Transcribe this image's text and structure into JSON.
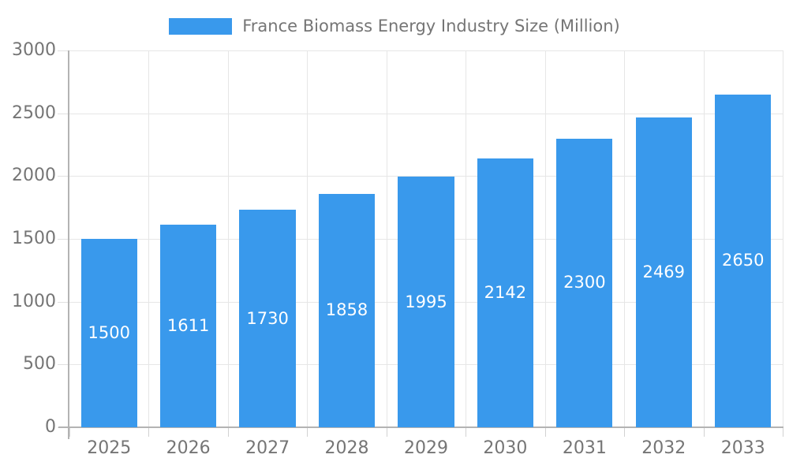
{
  "legend": {
    "label": "France Biomass Energy Industry Size (Million)"
  },
  "chart_data": {
    "type": "bar",
    "title": "France Biomass Energy Industry Size (Million)",
    "categories": [
      "2025",
      "2026",
      "2027",
      "2028",
      "2029",
      "2030",
      "2031",
      "2032",
      "2033"
    ],
    "values": [
      1500,
      1611,
      1730,
      1858,
      1995,
      2142,
      2300,
      2469,
      2650
    ],
    "value_labels": [
      "1500",
      "1611",
      "1730",
      "1858",
      "1995",
      "2142",
      "2300",
      "2469",
      "2650"
    ],
    "xlabel": "",
    "ylabel": "",
    "ylim": [
      0,
      3000
    ],
    "yticks": [
      0,
      500,
      1000,
      1500,
      2000,
      2500,
      3000
    ],
    "ytick_labels": [
      "0",
      "500",
      "1000",
      "1500",
      "2000",
      "2500",
      "3000"
    ],
    "grid": true,
    "legend_position": "top",
    "colors": {
      "bar": "#3999EC",
      "bar_value_text": "#ffffff",
      "axis_line": "#b3b3b3",
      "gridline": "#e6e6e6",
      "tick": "#d2d2d2",
      "axis_text": "#757575",
      "background": "#ffffff"
    }
  }
}
